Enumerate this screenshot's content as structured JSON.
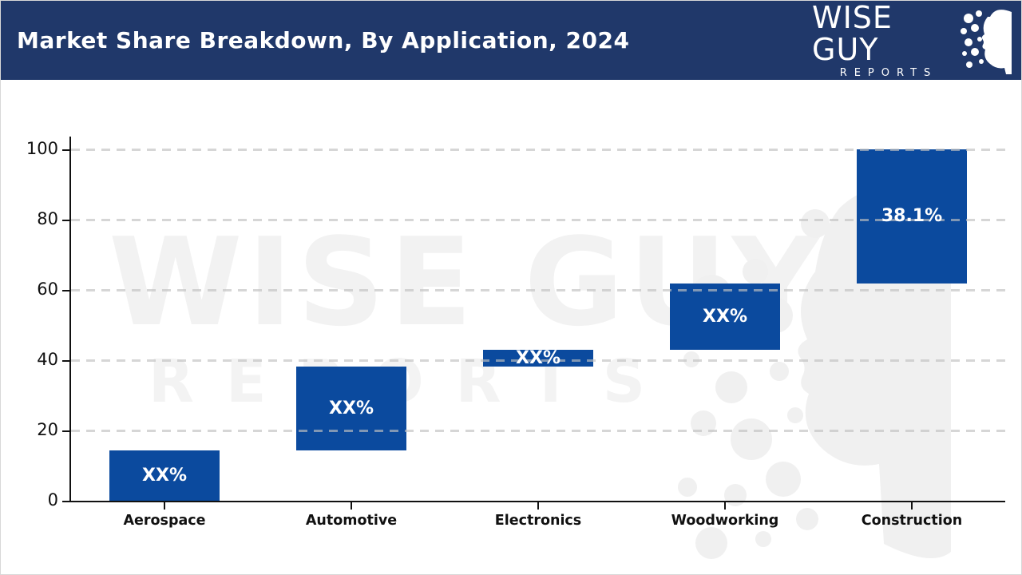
{
  "header": {
    "title": "Market Share Breakdown, By Application, 2024",
    "logo": {
      "line1": "WISE GUY",
      "line2": "REPORTS"
    }
  },
  "watermark": {
    "line1": "WISE GUY",
    "line2": "REPORTS"
  },
  "chart_data": {
    "type": "bar",
    "subtype": "waterfall",
    "title": "Market Share Breakdown, By Application, 2024",
    "categories": [
      "Aerospace",
      "Automotive",
      "Electronics",
      "Woodworking",
      "Construction"
    ],
    "segments": [
      {
        "category": "Aerospace",
        "start": 0,
        "end": 14.4,
        "value": 14.4,
        "label": "XX%"
      },
      {
        "category": "Automotive",
        "start": 14.4,
        "end": 38.1,
        "value": 23.7,
        "label": "XX%"
      },
      {
        "category": "Electronics",
        "start": 38.1,
        "end": 42.9,
        "value": 4.8,
        "label": "XX%"
      },
      {
        "category": "Woodworking",
        "start": 42.9,
        "end": 61.9,
        "value": 19.0,
        "label": "XX%"
      },
      {
        "category": "Construction",
        "start": 61.9,
        "end": 100,
        "value": 38.1,
        "label": "38.1%"
      }
    ],
    "yticks": [
      0,
      20,
      40,
      60,
      80,
      100
    ],
    "ylim": [
      0,
      104
    ],
    "xlabel": "",
    "ylabel": "",
    "grid": "horizontal-dashed",
    "legend": "none",
    "bar_color": "#0b4a9e",
    "bar_label_color": "#ffffff",
    "axis_color": "#111111",
    "header_color": "#20386a"
  }
}
